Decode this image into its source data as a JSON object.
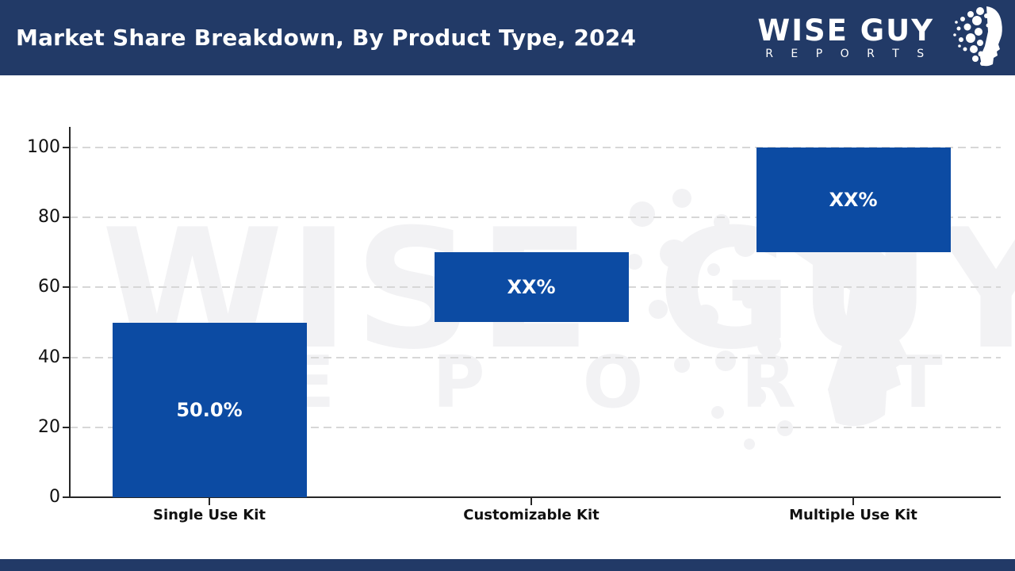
{
  "header": {
    "title": "Market Share Breakdown, By Product Type, 2024",
    "background_color": "#223A67",
    "logo": {
      "line1": "WISE GUY",
      "line2": "R E P O R T S"
    }
  },
  "watermark": {
    "line1": "WISE GUY",
    "line2": "R E P O R T S"
  },
  "footer": {
    "background_color": "#223A67"
  },
  "chart_data": {
    "type": "bar",
    "subtype": "floating-segment (waterfall-style market share)",
    "title": "Market Share Breakdown, By Product Type, 2024",
    "xlabel": "",
    "ylabel": "",
    "categories": [
      "Single Use Kit",
      "Customizable Kit",
      "Multiple Use Kit"
    ],
    "segments": [
      {
        "category": "Single Use Kit",
        "start": 0,
        "end": 50,
        "label": "50.0%"
      },
      {
        "category": "Customizable Kit",
        "start": 50,
        "end": 70,
        "label": "XX%"
      },
      {
        "category": "Multiple Use Kit",
        "start": 70,
        "end": 100,
        "label": "XX%"
      }
    ],
    "yticks": [
      0,
      20,
      40,
      60,
      80,
      100
    ],
    "ylim": [
      0,
      106
    ],
    "grid": "horizontal dashed",
    "grid_color": "#d7d7d7",
    "bar_color": "#0C4BA3",
    "bar_label_color": "#ffffff",
    "axis_color": "#262626",
    "tick_label_color": "#111111"
  }
}
